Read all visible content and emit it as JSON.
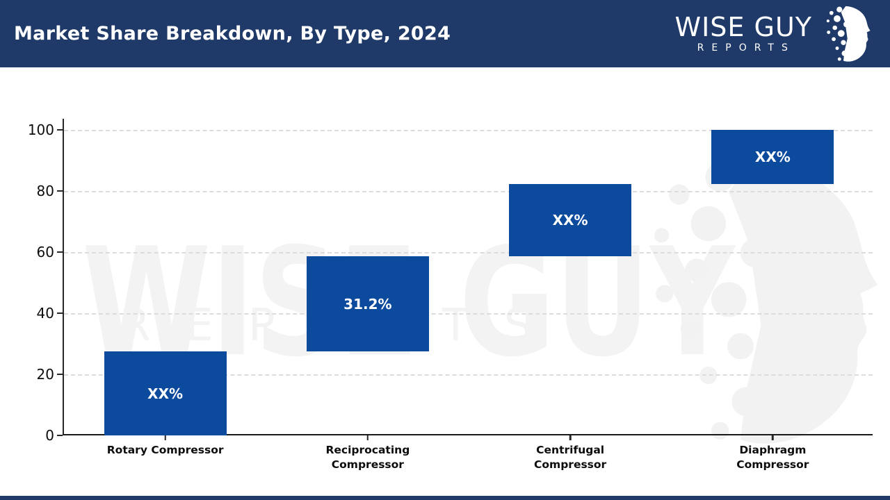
{
  "header": {
    "title": "Market Share Breakdown, By Type, 2024",
    "logo_line1": "WISE GUY",
    "logo_line2": "REPORTS",
    "bg_color": "#1f3a68"
  },
  "watermark": {
    "line1": "WISE GUY",
    "line2": "REPORTS"
  },
  "footer": {
    "strip_color": "#1f3a68"
  },
  "chart_data": {
    "type": "bar",
    "subtype": "waterfall",
    "title": "Market Share Breakdown, By Type, 2024",
    "categories": [
      "Rotary Compressor",
      "Reciprocating Compressor",
      "Centrifugal Compressor",
      "Diaphragm Compressor"
    ],
    "categories_display": [
      [
        "Rotary Compressor"
      ],
      [
        "Reciprocating",
        "Compressor"
      ],
      [
        "Centrifugal",
        "Compressor"
      ],
      [
        "Diaphragm",
        "Compressor"
      ]
    ],
    "segments": [
      {
        "category": "Rotary Compressor",
        "start": 0,
        "end": 27.4,
        "value": 27.4,
        "value_label": "XX%"
      },
      {
        "category": "Reciprocating Compressor",
        "start": 27.4,
        "end": 58.6,
        "value": 31.2,
        "value_label": "31.2%"
      },
      {
        "category": "Centrifugal Compressor",
        "start": 58.6,
        "end": 82.2,
        "value": 23.6,
        "value_label": "XX%"
      },
      {
        "category": "Diaphragm Compressor",
        "start": 82.2,
        "end": 100,
        "value": 17.8,
        "value_label": "XX%"
      }
    ],
    "xlabel": "",
    "ylabel": "",
    "ylim": [
      0,
      100
    ],
    "yticks": [
      0,
      20,
      40,
      60,
      80,
      100
    ],
    "grid": "horizontal-dashed",
    "legend": "none",
    "bar_color": "#0c4a9e",
    "bar_label_color": "#ffffff"
  }
}
